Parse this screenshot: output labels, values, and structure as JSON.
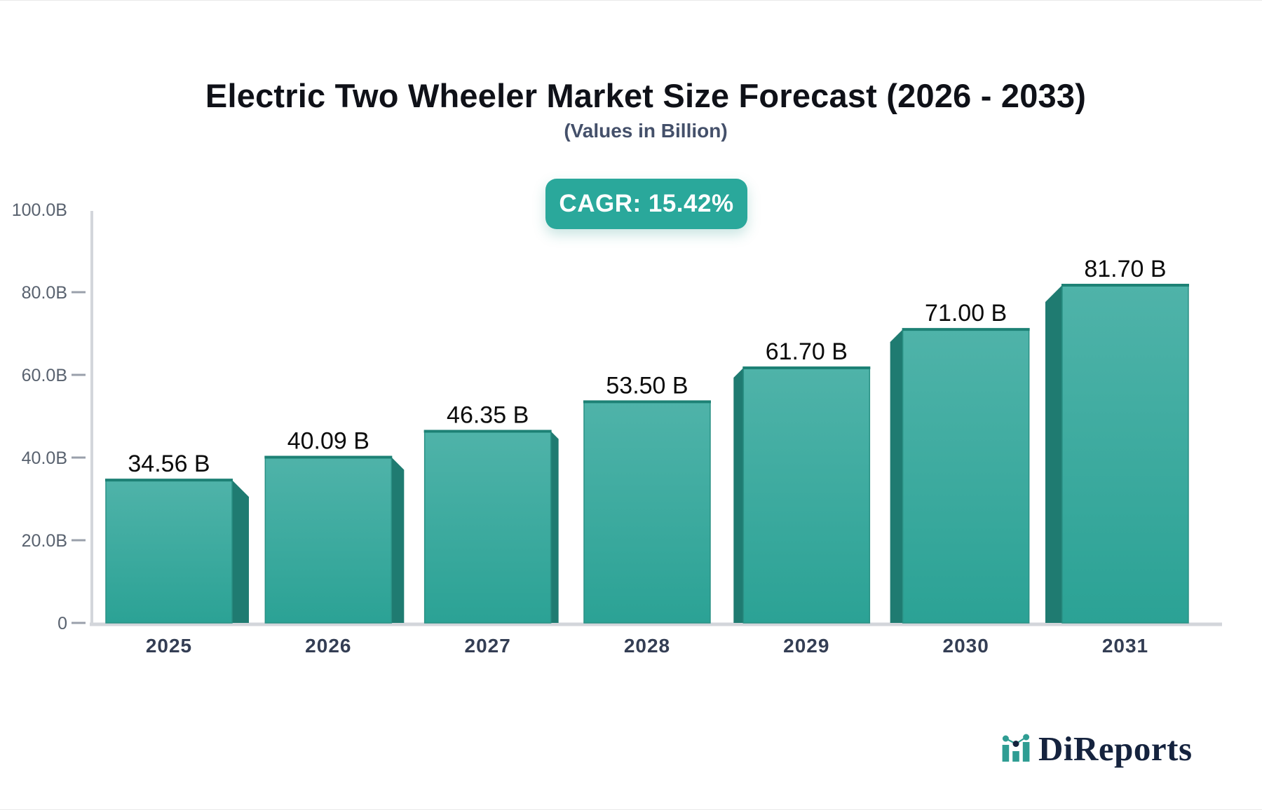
{
  "header": {
    "title": "Electric Two Wheeler Market Size Forecast (2026 - 2033)",
    "subtitle": "(Values in Billion)"
  },
  "badge": {
    "label": "CAGR: 15.42%"
  },
  "chart_data": {
    "type": "bar",
    "bar_style": "3d",
    "title": "Electric Two Wheeler Market Size Forecast (2026 - 2033)",
    "subtitle": "(Values in Billion)",
    "annotation": "CAGR: 15.42%",
    "categories": [
      "2025",
      "2026",
      "2027",
      "2028",
      "2029",
      "2030",
      "2031"
    ],
    "values": [
      34.56,
      40.09,
      46.35,
      53.5,
      61.7,
      71.0,
      81.7
    ],
    "value_labels": [
      "34.56 B",
      "40.09 B",
      "46.35 B",
      "53.50 B",
      "61.70 B",
      "71.00 B",
      "81.70 B"
    ],
    "y_ticks": [
      {
        "value": 0,
        "label": "0"
      },
      {
        "value": 20,
        "label": "20.0B"
      },
      {
        "value": 40,
        "label": "40.0B"
      },
      {
        "value": 60,
        "label": "60.0B"
      },
      {
        "value": 80,
        "label": "80.0B"
      },
      {
        "value": 100,
        "label": "100.0B"
      }
    ],
    "ylim": [
      0,
      100
    ],
    "xlabel": "",
    "ylabel": "",
    "grid": false,
    "legend": false,
    "colors": {
      "bar_face_top": "#4fb3a9",
      "bar_face_bottom": "#2ba295",
      "bar_side": "#1f7b71",
      "bar_top_edge": "#1d8175",
      "bar_face_stroke": "#2a9185",
      "axis_line": "#d3d6db",
      "tick": "#9aa0ab",
      "y_label": "#59626f",
      "x_label": "#343e54",
      "value_label": "#0c0c0c",
      "badge_bg": "#2aa89b",
      "badge_text": "#ffffff"
    }
  },
  "logo": {
    "text": "DiReports",
    "teal": "#2f9d93",
    "navy": "#15233e"
  }
}
